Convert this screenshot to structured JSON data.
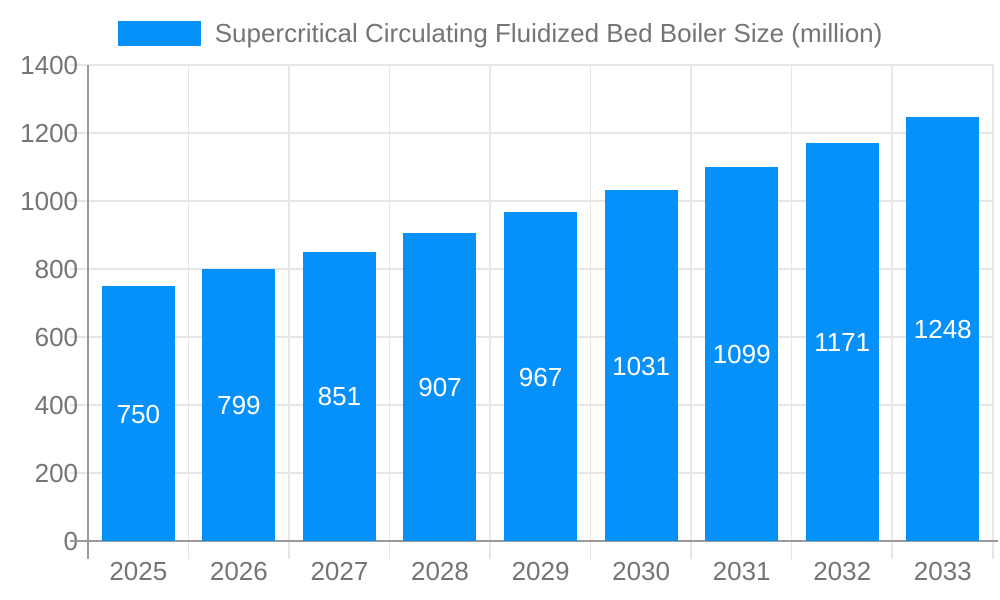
{
  "legend": {
    "series_label": "Supercritical Circulating Fluidized Bed Boiler Size (million)"
  },
  "colors": {
    "bar": "#0690fa",
    "grid": "#e6e6e6",
    "axis": "#999999",
    "tick_text": "#757575",
    "title_text": "#757575",
    "bar_label_text": "#ffffff",
    "background": "#ffffff"
  },
  "chart_data": {
    "type": "bar",
    "title": "Supercritical Circulating Fluidized Bed Boiler Size (million)",
    "xlabel": "",
    "ylabel": "",
    "categories": [
      "2025",
      "2026",
      "2027",
      "2028",
      "2029",
      "2030",
      "2031",
      "2032",
      "2033"
    ],
    "series": [
      {
        "name": "Supercritical Circulating Fluidized Bed Boiler Size (million)",
        "values": [
          750,
          799,
          851,
          907,
          967,
          1031,
          1099,
          1171,
          1248
        ]
      }
    ],
    "values": [
      750,
      799,
      851,
      907,
      967,
      1031,
      1099,
      1171,
      1248
    ],
    "data_labels": [
      "750",
      "799",
      "851",
      "907",
      "967",
      "1031",
      "1099",
      "1171",
      "1248"
    ],
    "ylim": [
      0,
      1400
    ],
    "yticks": [
      0,
      200,
      400,
      600,
      800,
      1000,
      1200,
      1400
    ],
    "grid": true,
    "legend_position": "top"
  }
}
